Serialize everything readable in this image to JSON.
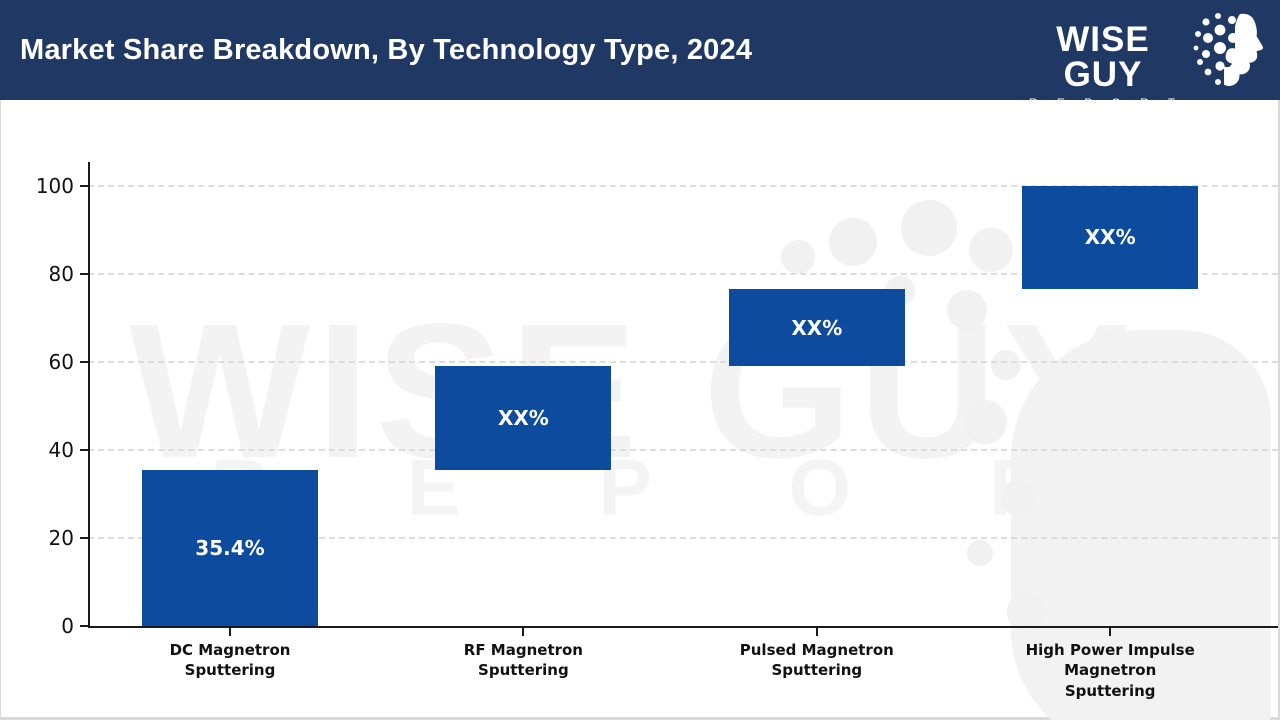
{
  "header": {
    "title": "Market Share Breakdown, By Technology Type, 2024",
    "logo": {
      "primary": "WISE GUY",
      "secondary": "R E P O R T S",
      "icon": "dotted-head-profile"
    }
  },
  "watermark": {
    "primary": "WISE GUY",
    "secondary": "R E P O R T S"
  },
  "chart_data": {
    "type": "bar",
    "subtype": "waterfall",
    "title": "Market Share Breakdown, By Technology Type, 2024",
    "categories": [
      "DC Magnetron Sputtering",
      "RF Magnetron Sputtering",
      "Pulsed Magnetron Sputtering",
      "High Power Impulse Magnetron Sputtering"
    ],
    "category_lines": [
      [
        "DC Magnetron",
        "Sputtering"
      ],
      [
        "RF Magnetron",
        "Sputtering"
      ],
      [
        "Pulsed Magnetron",
        "Sputtering"
      ],
      [
        "High Power Impulse",
        "Magnetron",
        "Sputtering"
      ]
    ],
    "bars": [
      {
        "category": "DC Magnetron Sputtering",
        "base": 0,
        "top": 35.4,
        "value_label": "35.4%"
      },
      {
        "category": "RF Magnetron Sputtering",
        "base": 35.4,
        "top": 59.0,
        "value_label": "XX%"
      },
      {
        "category": "Pulsed Magnetron Sputtering",
        "base": 59.0,
        "top": 76.6,
        "value_label": "XX%"
      },
      {
        "category": "High Power Impulse Magnetron Sputtering",
        "base": 76.6,
        "top": 100,
        "value_label": "XX%"
      }
    ],
    "y_ticks": [
      0,
      20,
      40,
      60,
      80,
      100
    ],
    "ylim": [
      0,
      105.5
    ],
    "xlabel": "",
    "ylabel": "",
    "grid": "horizontal-dashed",
    "legend": "none",
    "colors": {
      "bar": "#0d4b9e",
      "value_label": "#ffffff",
      "axis": "#1a1a1a",
      "grid": "#dcdcdc",
      "header_bg": "#1f3864",
      "watermark": "#f3f3f3"
    }
  }
}
